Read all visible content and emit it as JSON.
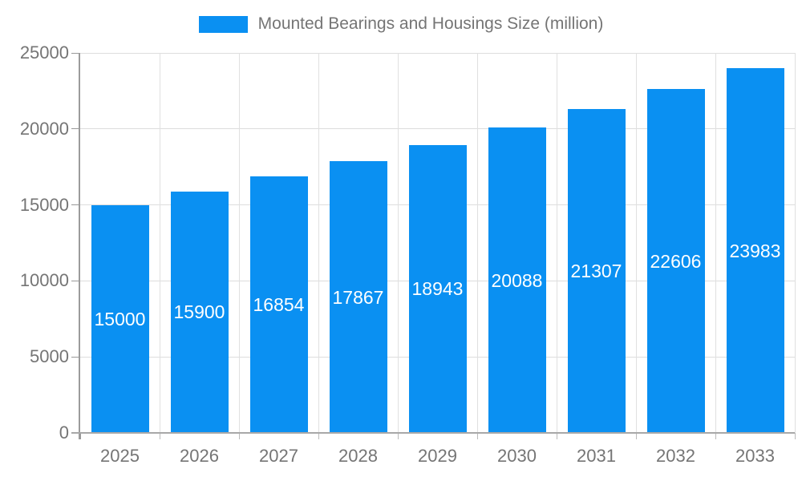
{
  "legend": {
    "label": "Mounted Bearings and Housings Size (million)"
  },
  "chart_data": {
    "type": "bar",
    "title": "Mounted Bearings and Housings Size (million)",
    "series_name": "Mounted Bearings and Housings Size (million)",
    "categories": [
      "2025",
      "2026",
      "2027",
      "2028",
      "2029",
      "2030",
      "2031",
      "2032",
      "2033"
    ],
    "values": [
      15000,
      15900,
      16854,
      17867,
      18943,
      20088,
      21307,
      22606,
      23983
    ],
    "xlabel": "",
    "ylabel": "",
    "ylim": [
      0,
      25000
    ],
    "y_ticks": [
      0,
      5000,
      10000,
      15000,
      20000,
      25000
    ],
    "grid": true,
    "legend_position": "top",
    "bar_color": "#0a90f2",
    "value_label_color": "#ffffff",
    "axis_text_color": "#757575",
    "grid_color": "#dddddd",
    "axis_line_color": "#999999",
    "background_color": "#ffffff"
  }
}
